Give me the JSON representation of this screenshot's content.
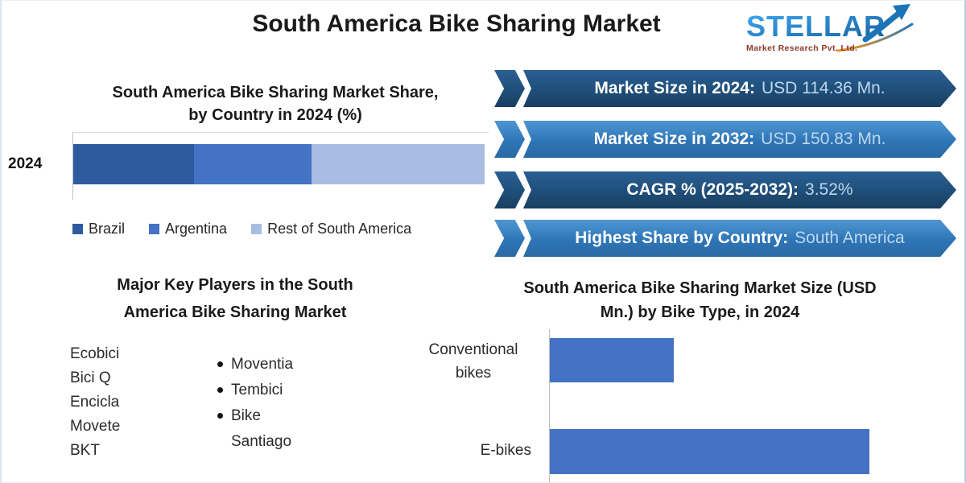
{
  "page": {
    "title": "South America Bike Sharing Market"
  },
  "logo": {
    "brand": "STELLAR",
    "subtitle": "Market Research Pvt. Ltd.",
    "brand_color": "#1b74b8",
    "subtitle_color": "#8d3a2c"
  },
  "colors": {
    "banner_dark": "#1F4E79",
    "banner_light": "#2E75B6",
    "banner_value_text": "#BDD7EE",
    "brazil": "#2E5B9E",
    "argentina": "#4472C4",
    "rest_of_south_america": "#A9BCE2",
    "bike_bar": "#4472C4",
    "canvas_border": "#B5CBE3"
  },
  "country_share_chart": {
    "title_lines": [
      "South America Bike Sharing Market Share,",
      "by Country in 2024 (%)"
    ]
  },
  "stat_banners": [
    {
      "label": "Market Size in 2024:",
      "value": "USD 114.36 Mn.",
      "style": "dark"
    },
    {
      "label": "Market Size in 2032:",
      "value": "USD 150.83 Mn.",
      "style": "light"
    },
    {
      "label": "CAGR % (2025-2032):",
      "value": "3.52%",
      "style": "dark"
    },
    {
      "label": "Highest Share by Country:",
      "value": "South America",
      "style": "light"
    }
  ],
  "key_players": {
    "title_lines": [
      "Major Key Players in the South",
      "America Bike Sharing Market"
    ],
    "plain_list": [
      "Ecobici",
      "Bici Q",
      "Encicla",
      "Movete",
      "BKT"
    ],
    "bullet_list": [
      "Moventia",
      "Tembici",
      "Bike Santiago"
    ]
  },
  "bike_type_chart": {
    "title_lines": [
      "South America Bike Sharing Market Size (USD",
      "Mn.) by Bike Type, in 2024"
    ]
  },
  "chart_data": [
    {
      "type": "bar",
      "subtype": "stacked-horizontal",
      "title": "South America Bike Sharing Market Share, by Country in 2024 (%)",
      "categories": [
        "2024"
      ],
      "series": [
        {
          "name": "Brazil",
          "values": [
            29.4
          ],
          "color": "#2E5B9E"
        },
        {
          "name": "Argentina",
          "values": [
            28.6
          ],
          "color": "#4472C4"
        },
        {
          "name": "Rest of South America",
          "values": [
            42.0
          ],
          "color": "#A9BCE2"
        }
      ],
      "unit": "%",
      "xlim": [
        0,
        100
      ],
      "grid": false,
      "legend_position": "bottom",
      "note": "segment shares estimated from bar segment lengths; no data labels shown in image"
    },
    {
      "type": "bar",
      "subtype": "horizontal",
      "title": "South America Bike Sharing Market Size (USD Mn.) by Bike Type, in 2024",
      "categories": [
        "Conventional bikes",
        "E-bikes"
      ],
      "values": [
        31.9,
        82.5
      ],
      "bar_color": "#4472C4",
      "unit": "USD Mn.",
      "grid": false,
      "note": "no axis labels shown; values estimated from relative bar lengths (~28% vs ~72% of 2024 total USD 114.36 Mn.)"
    }
  ]
}
